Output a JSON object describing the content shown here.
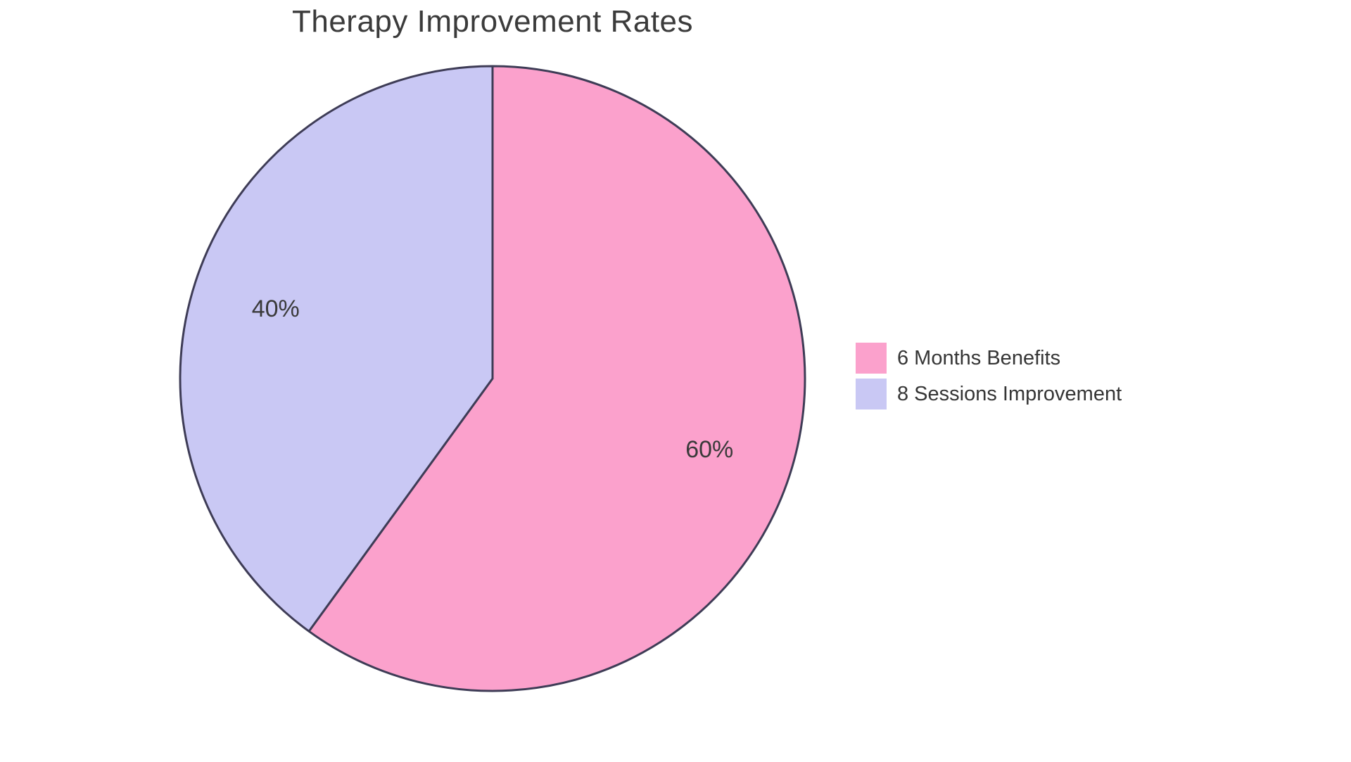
{
  "title": "Therapy Improvement Rates",
  "chart_data": {
    "type": "pie",
    "title": "Therapy Improvement Rates",
    "start_angle_deg_from_top": 0,
    "direction": "clockwise",
    "legend_position": "right",
    "background_color": "#ffffff",
    "stroke_color": "#3e3c56",
    "label_color": "#3a3a3a",
    "slices": [
      {
        "label": "6 Months Benefits",
        "value": 60,
        "pct_label": "60%",
        "color": "#fba1cc"
      },
      {
        "label": "8 Sessions Improvement",
        "value": 40,
        "pct_label": "40%",
        "color": "#c9c8f4"
      }
    ]
  }
}
